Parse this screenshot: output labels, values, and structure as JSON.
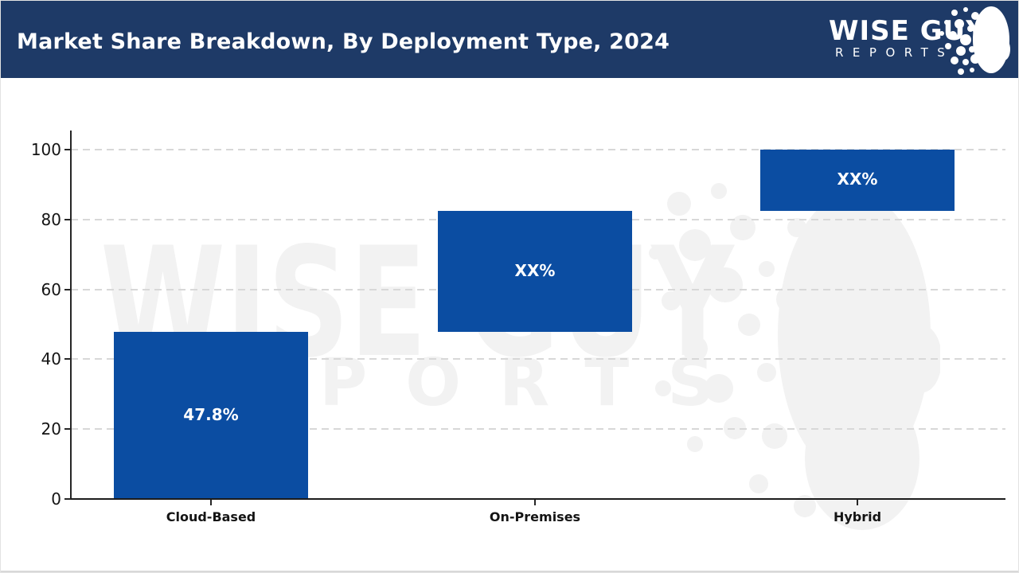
{
  "header": {
    "title": "Market Share Breakdown, By Deployment Type, 2024",
    "bg_color": "#1E3A67",
    "logo": {
      "line1": "WISE GUY",
      "line2": "REPORTS"
    }
  },
  "watermark": {
    "line1": "WISE GUY",
    "line2": "REPORTS"
  },
  "chart_data": {
    "type": "bar",
    "subtype": "waterfall-stacked-breakdown",
    "title": "Market Share Breakdown, By Deployment Type, 2024",
    "categories": [
      "Cloud-Based",
      "On-Premises",
      "Hybrid"
    ],
    "segments": [
      {
        "category": "Cloud-Based",
        "start": 0,
        "end": 47.8,
        "label": "47.8%"
      },
      {
        "category": "On-Premises",
        "start": 47.8,
        "end": 82.5,
        "label": "XX%"
      },
      {
        "category": "Hybrid",
        "start": 82.5,
        "end": 100,
        "label": "XX%"
      }
    ],
    "xlabel": "",
    "ylabel": "",
    "ylim": [
      0,
      100
    ],
    "yticks": [
      0,
      20,
      40,
      60,
      80,
      100
    ],
    "grid": "horizontal-dashed",
    "legend": "none",
    "bar_color": "#0B4DA2",
    "value_label_color": "#FFFFFF"
  }
}
